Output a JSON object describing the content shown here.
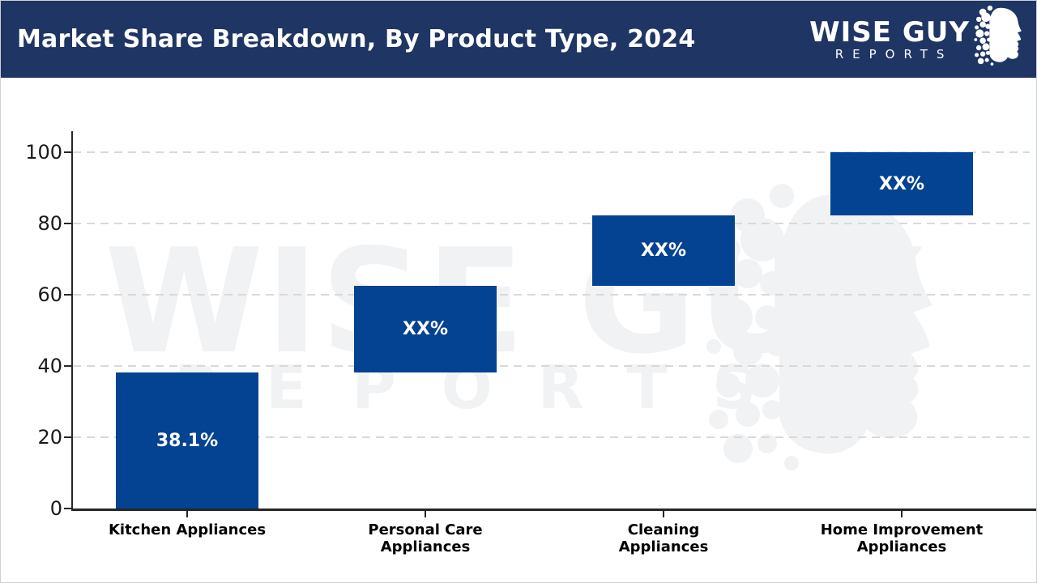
{
  "header": {
    "title": "Market Share Breakdown, By Product Type, 2024",
    "brand_line1": "WISE GUY",
    "brand_line2": "REPORTS",
    "bg_color": "#1f3564"
  },
  "watermark": {
    "line1": "WISE GUY",
    "line2": "REPORTS",
    "color": "#f1f2f4"
  },
  "chart_data": {
    "type": "bar",
    "variant": "waterfall",
    "title": "Market Share Breakdown, By Product Type, 2024",
    "categories": [
      [
        "Kitchen Appliances"
      ],
      [
        "Personal Care",
        "Appliances"
      ],
      [
        "Cleaning",
        "Appliances"
      ],
      [
        "Home Improvement",
        "Appliances"
      ]
    ],
    "segments": [
      {
        "category": "Kitchen Appliances",
        "start": 0,
        "end": 38.1,
        "label": "38.1%"
      },
      {
        "category": "Personal Care Appliances",
        "start": 38.1,
        "end": 62.6,
        "label": "XX%"
      },
      {
        "category": "Cleaning Appliances",
        "start": 62.6,
        "end": 82.2,
        "label": "XX%"
      },
      {
        "category": "Home Improvement Appliances",
        "start": 82.2,
        "end": 100,
        "label": "XX%"
      }
    ],
    "bar_color": "#044292",
    "yticks": [
      0,
      20,
      40,
      60,
      80,
      100
    ],
    "ylim": [
      0,
      100
    ],
    "xlabel": "",
    "ylabel": "",
    "grid": "dashed-horizontal",
    "legend": "none"
  }
}
